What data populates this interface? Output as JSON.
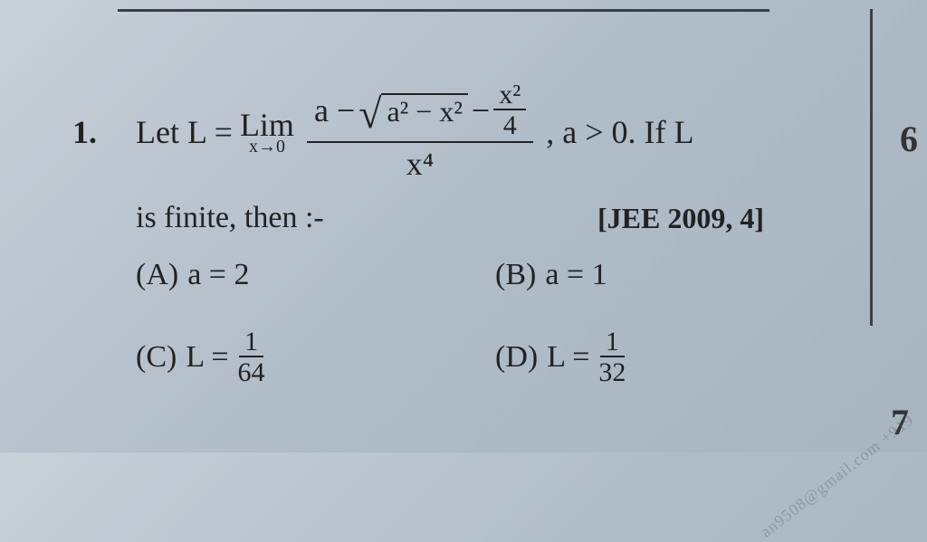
{
  "question": {
    "number": "1.",
    "lead": "Let L =",
    "lim_top": "Lim",
    "lim_sub": "x→0",
    "numerator_a": "a −",
    "sqrt_inner": "a² − x²",
    "numerator_minus": "−",
    "small_frac_num": "x²",
    "small_frac_den": "4",
    "denominator": "x⁴",
    "after": ", a > 0. If L",
    "cond": "is finite, then :-",
    "tag": "[JEE 2009, 4]"
  },
  "options": {
    "a": {
      "label": "(A)",
      "text": "a = 2"
    },
    "b": {
      "label": "(B)",
      "text": "a = 1"
    },
    "c": {
      "label": "(C)",
      "lhs": "L =",
      "num": "1",
      "den": "64"
    },
    "d": {
      "label": "(D)",
      "lhs": "L =",
      "num": "1",
      "den": "32"
    }
  },
  "edges": {
    "right_top": "6",
    "right_bottom": "7"
  },
  "watermark": "an9508@gmail.com +919",
  "colors": {
    "text": "#222222",
    "border": "#3a4048",
    "bg_light": "#c8d0d8",
    "bg_dark": "#a8b4c0"
  }
}
